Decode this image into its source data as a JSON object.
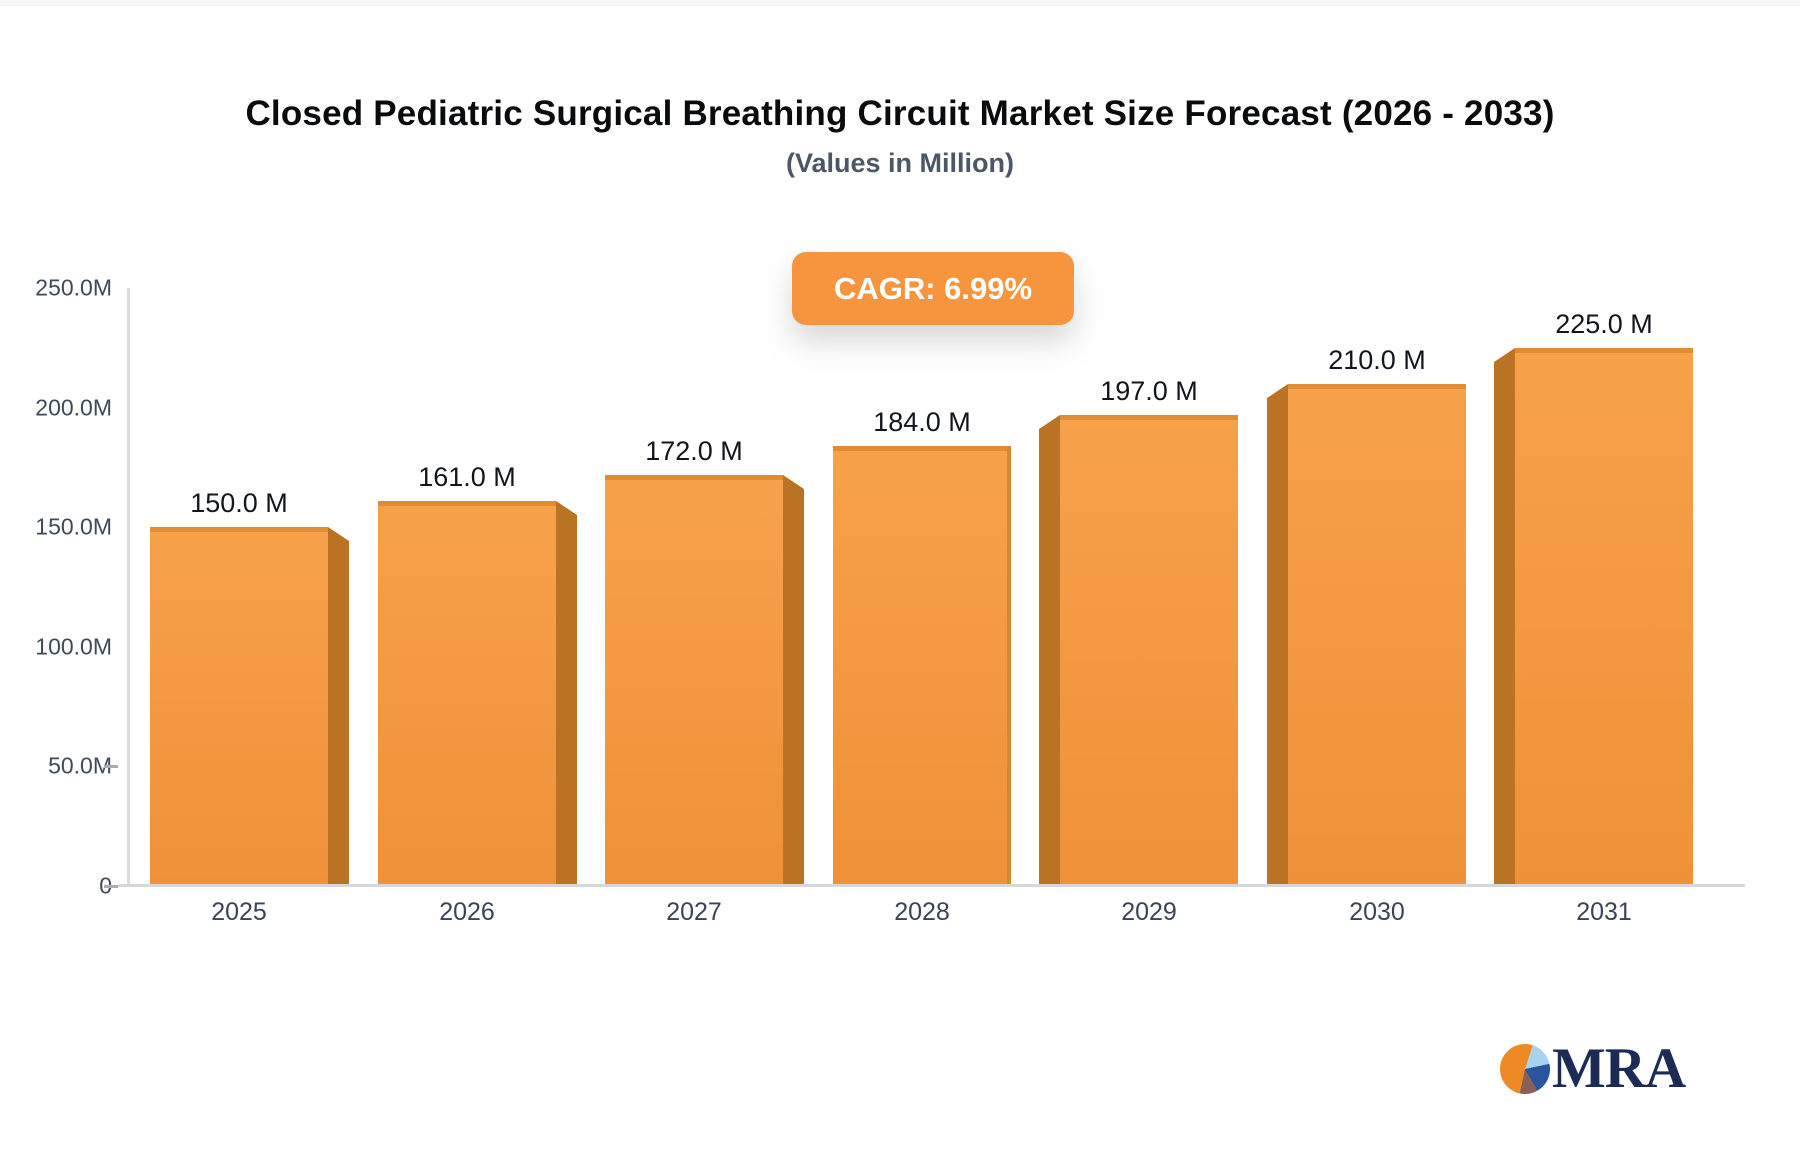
{
  "header": {
    "title": "Closed Pediatric Surgical Breathing Circuit Market Size Forecast (2026 - 2033)",
    "subtitle": "(Values in Million)"
  },
  "badge": {
    "label": "CAGR: 6.99%",
    "bg": "#F6953E",
    "text_color": "#ffffff"
  },
  "chart_data": {
    "type": "bar",
    "title": "Closed Pediatric Surgical Breathing Circuit Market Size Forecast (2026 - 2033)",
    "subtitle": "(Values in Million)",
    "cagr": "6.99%",
    "categories": [
      "2025",
      "2026",
      "2027",
      "2028",
      "2029",
      "2030",
      "2031"
    ],
    "values": [
      150,
      161,
      172,
      184,
      197,
      210,
      225
    ],
    "value_labels": [
      "150.0 M",
      "161.0 M",
      "172.0 M",
      "184.0 M",
      "197.0 M",
      "210.0 M",
      "225.0 M"
    ],
    "unit_suffix": "M",
    "ylim": [
      0,
      250
    ],
    "yticks": [
      {
        "label": "250.0M",
        "value": 250,
        "dash": false
      },
      {
        "label": "200.0M",
        "value": 200,
        "dash": false
      },
      {
        "label": "150.0M",
        "value": 150,
        "dash": false
      },
      {
        "label": "100.0M",
        "value": 100,
        "dash": false
      },
      {
        "label": "50.0M",
        "value": 50,
        "dash": true
      },
      {
        "label": "0",
        "value": 0,
        "dash": true
      }
    ],
    "grid": false,
    "legend": "none",
    "depth_side": [
      "right",
      "right",
      "right",
      "none",
      "left",
      "left",
      "left"
    ],
    "colors": {
      "bar_top": "#F7A14B",
      "bar_bottom": "#EF9138",
      "bar_side": "#B97322",
      "bar_cap": "#E08C33",
      "bar_edge": "#D28A31",
      "axis_line": "#dadce2",
      "baseline": "#d5d7db",
      "tick_dash": "#a7adb5",
      "value_label": "#12161c",
      "tick_label": "#3e4959"
    }
  },
  "logo": {
    "text": "MRA",
    "pie_colors": [
      "#ED8A25",
      "#A9D2F0",
      "#2A549B",
      "#8A5F58"
    ]
  }
}
